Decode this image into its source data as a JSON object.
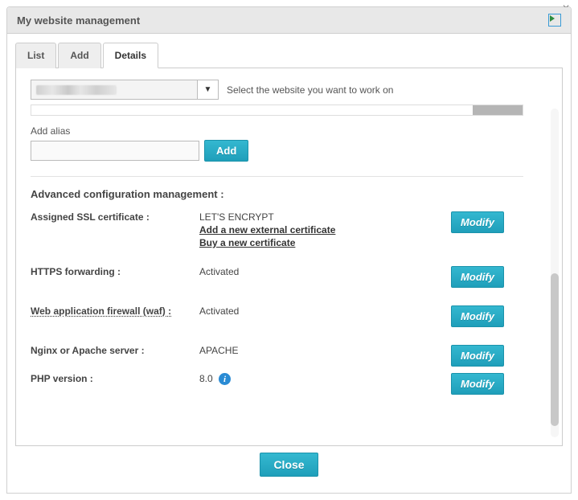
{
  "dialog": {
    "title": "My website management",
    "close_x": "×"
  },
  "tabs": {
    "list": "List",
    "add": "Add",
    "details": "Details"
  },
  "site_selector": {
    "hint": "Select the website you want to work on",
    "caret": "▼"
  },
  "alias": {
    "label": "Add alias",
    "add_btn": "Add"
  },
  "section_title": "Advanced configuration management :",
  "rows": {
    "ssl": {
      "label": "Assigned SSL certificate :",
      "value": "LET'S ENCRYPT",
      "link1": "Add a new external certificate",
      "link2": "Buy a new certificate",
      "action": "Modify"
    },
    "https": {
      "label": "HTTPS forwarding :",
      "value": "Activated",
      "action": "Modify"
    },
    "waf": {
      "label": "Web application firewall (waf) :",
      "value": "Activated",
      "action": "Modify"
    },
    "server": {
      "label": "Nginx or Apache server :",
      "value": "APACHE",
      "action": "Modify"
    },
    "php": {
      "label": "PHP version :",
      "value": "8.0",
      "action": "Modify",
      "info": "i"
    }
  },
  "footer": {
    "close": "Close"
  },
  "colors": {
    "teal": "#2aaec8",
    "teal_border": "#1a92ab",
    "header_bg": "#e8e8e8",
    "tab_inactive_bg": "#eeeeee",
    "border": "#cccccc"
  }
}
